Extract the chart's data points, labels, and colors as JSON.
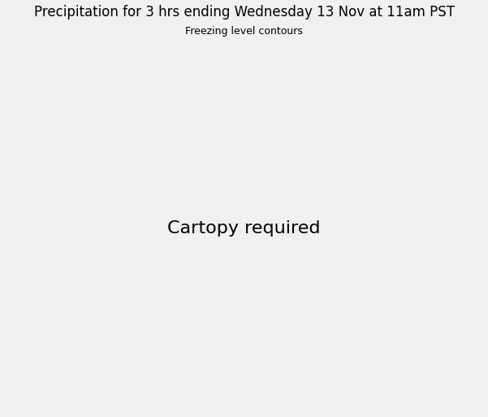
{
  "title": "Precipitation for 3 hrs ending Wednesday 13 Nov at 11am PST",
  "subtitle": "Freezing level contours",
  "title_fontsize": 12,
  "subtitle_fontsize": 9,
  "ocean_color": "#ccd9f0",
  "land_color": "#a0a0a0",
  "contour_color": "#cc0000",
  "fig_width": 6.01,
  "fig_height": 5.13,
  "dpi": 100,
  "extent": [
    108,
    145,
    3,
    28
  ],
  "title_bg": "#f0f0f0"
}
